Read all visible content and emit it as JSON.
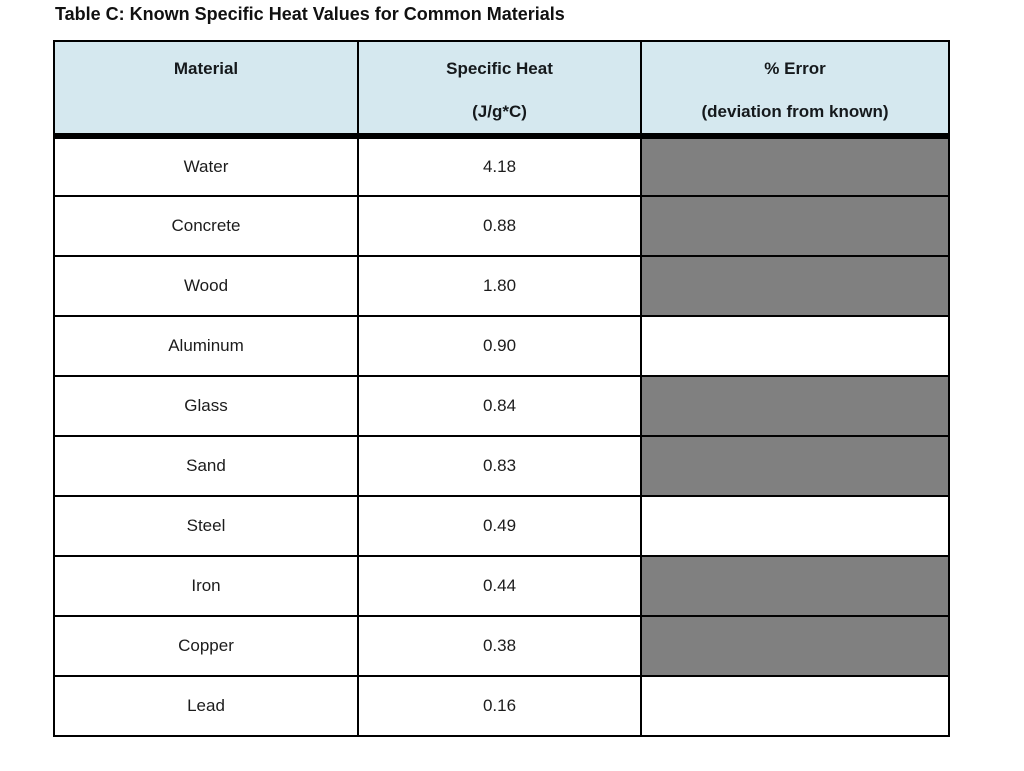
{
  "title": "Table C: Known Specific Heat Values for Common Materials",
  "table": {
    "columns": [
      {
        "line1": "Material",
        "line2": ""
      },
      {
        "line1": "Specific Heat",
        "line2": "(J/g*C)"
      },
      {
        "line1": "% Error",
        "line2": "(deviation from known)"
      }
    ],
    "rows": [
      {
        "material": "Water",
        "specific_heat": "4.18",
        "error": "",
        "error_filled": true
      },
      {
        "material": "Concrete",
        "specific_heat": "0.88",
        "error": "",
        "error_filled": true
      },
      {
        "material": "Wood",
        "specific_heat": "1.80",
        "error": "",
        "error_filled": true
      },
      {
        "material": "Aluminum",
        "specific_heat": "0.90",
        "error": "",
        "error_filled": false
      },
      {
        "material": "Glass",
        "specific_heat": "0.84",
        "error": "",
        "error_filled": true
      },
      {
        "material": "Sand",
        "specific_heat": "0.83",
        "error": "",
        "error_filled": true
      },
      {
        "material": "Steel",
        "specific_heat": "0.49",
        "error": "",
        "error_filled": false
      },
      {
        "material": "Iron",
        "specific_heat": "0.44",
        "error": "",
        "error_filled": true
      },
      {
        "material": "Copper",
        "specific_heat": "0.38",
        "error": "",
        "error_filled": true
      },
      {
        "material": "Lead",
        "specific_heat": "0.16",
        "error": "",
        "error_filled": false
      }
    ]
  },
  "colors": {
    "header_bg": "#d5e8ef",
    "filled_cell": "#808080",
    "border": "#000000",
    "page_bg": "#ffffff"
  }
}
